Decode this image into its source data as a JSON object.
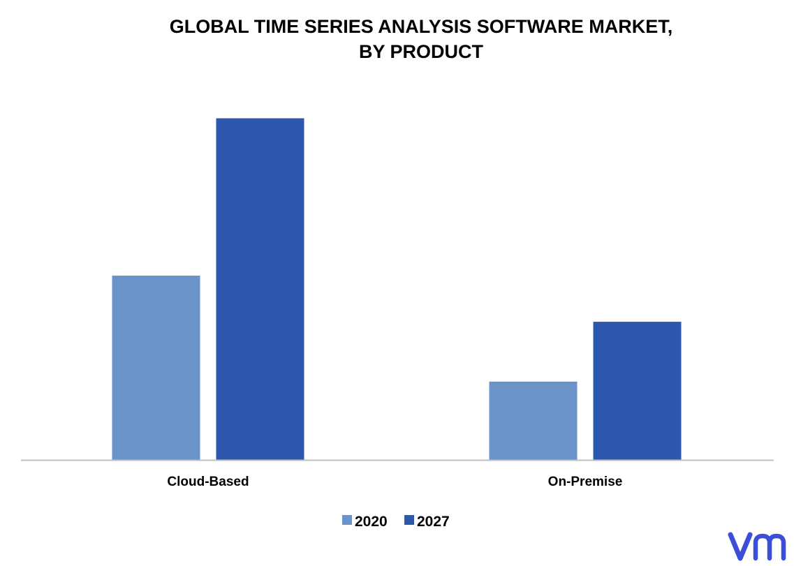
{
  "chart_data": {
    "type": "bar",
    "title": "GLOBAL TIME SERIES ANALYSIS SOFTWARE MARKET,",
    "subtitle": "BY PRODUCT",
    "categories": [
      "Cloud-Based",
      "On-Premise"
    ],
    "series": [
      {
        "name": "2020",
        "color": "#6a94c9",
        "values": [
          54,
          23
        ]
      },
      {
        "name": "2027",
        "color": "#2e57ae",
        "values": [
          100,
          40.5
        ]
      }
    ],
    "ylim": [
      0,
      100
    ],
    "grid": false,
    "legend": "bottom-center"
  },
  "logo": {
    "text": "vm",
    "color": "#3b4fd6",
    "icon": "vmr-logo-icon"
  }
}
